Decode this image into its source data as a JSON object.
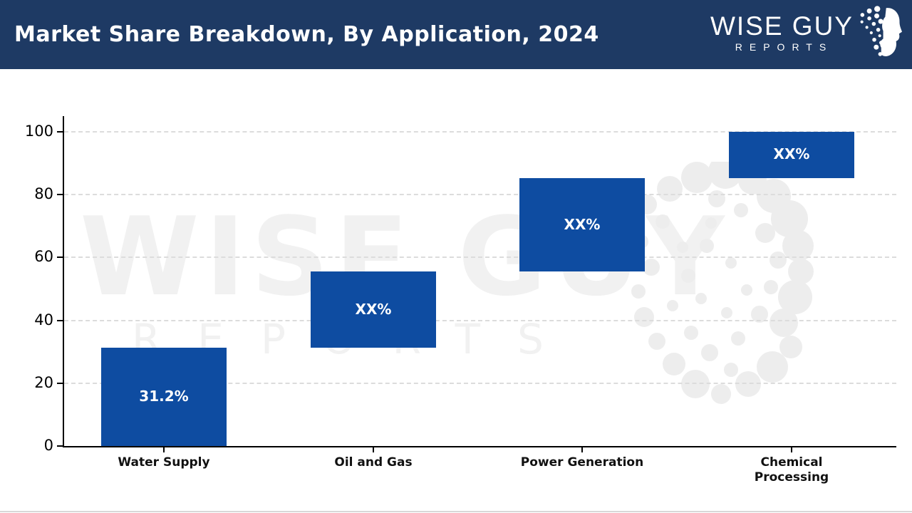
{
  "header": {
    "title": "Market Share Breakdown, By Application, 2024",
    "background_color": "#1e3a64",
    "logo": {
      "primary": "WISE GUY",
      "secondary": "REPORTS",
      "icon": "dotted-face-profile"
    }
  },
  "watermark": {
    "primary": "WISE GUY",
    "secondary": "REPORTS"
  },
  "chart_data": {
    "type": "bar",
    "variant": "waterfall",
    "title": "Market Share Breakdown, By Application, 2024",
    "categories": [
      "Water Supply",
      "Oil and Gas",
      "Power Generation",
      "Chemical Processing"
    ],
    "segments": [
      {
        "category": "Water Supply",
        "label": "31.2%",
        "start": 0,
        "end": 31.2,
        "value": 31.2
      },
      {
        "category": "Oil and Gas",
        "label": "XX%",
        "start": 31.2,
        "end": 55.5,
        "value": 24.3
      },
      {
        "category": "Power Generation",
        "label": "XX%",
        "start": 55.5,
        "end": 85.3,
        "value": 29.8
      },
      {
        "category": "Chemical Processing",
        "label": "XX%",
        "start": 85.3,
        "end": 100,
        "value": 14.7
      }
    ],
    "yticks": [
      0,
      20,
      40,
      60,
      80,
      100
    ],
    "ylim": [
      0,
      105
    ],
    "xlabel": "",
    "ylabel": "",
    "grid": "horizontal-dashed",
    "legend": "none",
    "bar_color": "#0e4ca1",
    "bar_label_color": "#ffffff",
    "axis_color": "#000000",
    "gridline_color": "#dcdcdc"
  }
}
